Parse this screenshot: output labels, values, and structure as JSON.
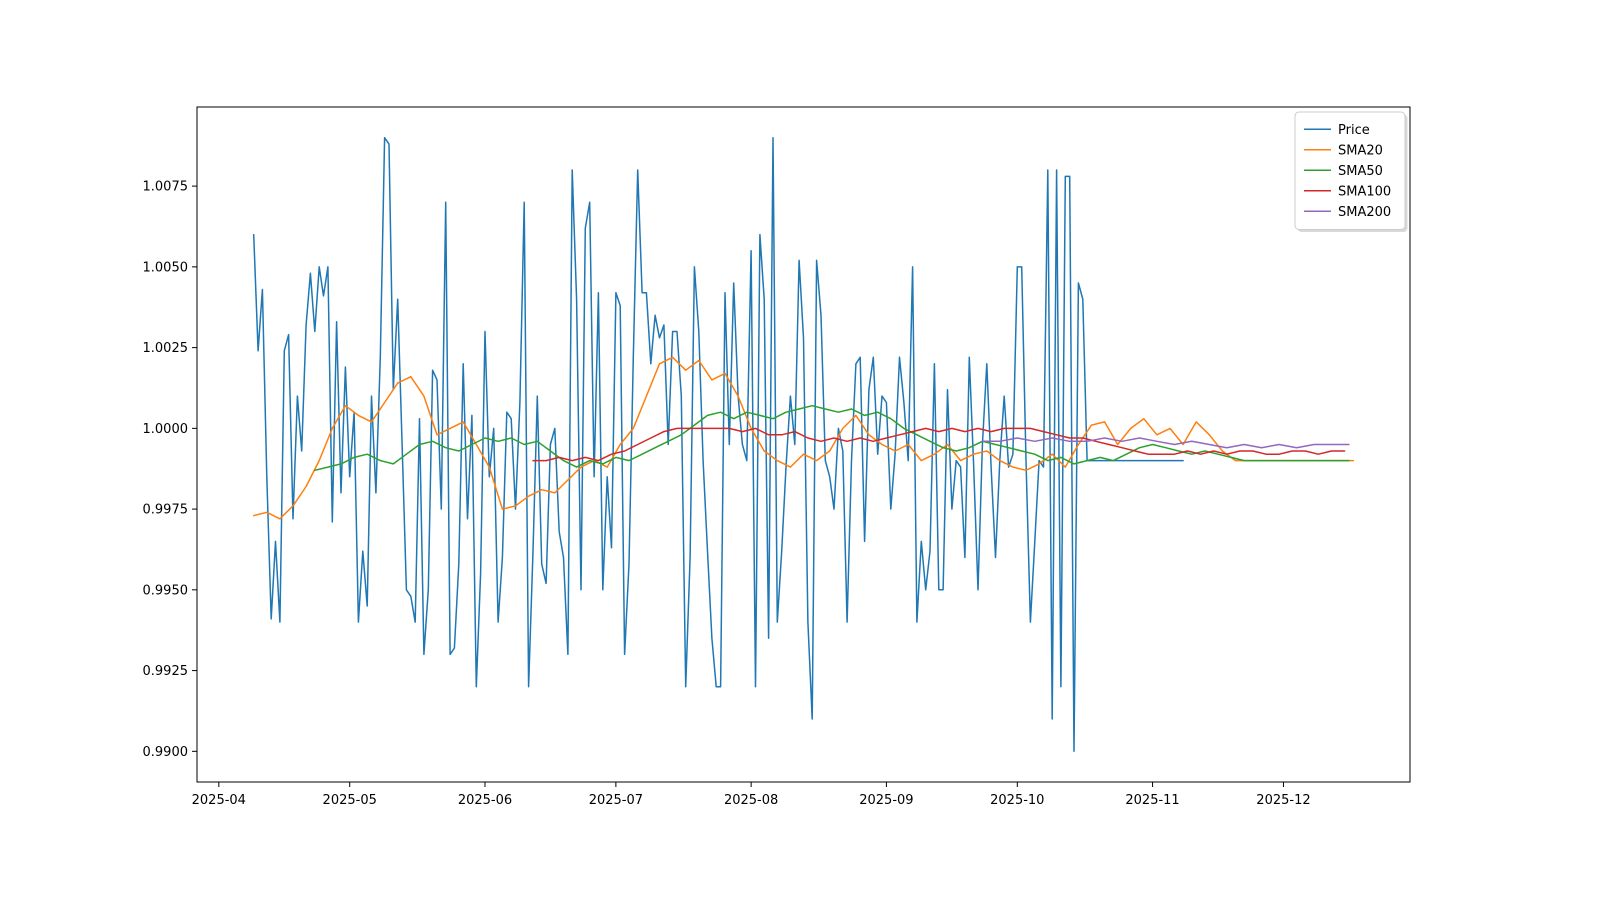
{
  "figure": {
    "background": "#ffffff",
    "axes_frame_color": "#000000",
    "tick_color": "#000000"
  },
  "chart_data": {
    "type": "line",
    "title": "",
    "xlabel": "",
    "ylabel": "",
    "grid": false,
    "legend_position": "upper right",
    "legend_frame_color": "#cccccc",
    "legend_background": "#ffffff",
    "x_axis_kind": "date",
    "day_0_date": "2025-04-01",
    "xlim_days": [
      -5,
      273
    ],
    "ylim": [
      0.98905,
      1.00995
    ],
    "x_ticks": [
      {
        "label": "2025-04",
        "day": 0
      },
      {
        "label": "2025-05",
        "day": 30
      },
      {
        "label": "2025-06",
        "day": 61
      },
      {
        "label": "2025-07",
        "day": 91
      },
      {
        "label": "2025-08",
        "day": 122
      },
      {
        "label": "2025-09",
        "day": 153
      },
      {
        "label": "2025-10",
        "day": 183
      },
      {
        "label": "2025-11",
        "day": 214
      },
      {
        "label": "2025-12",
        "day": 244
      }
    ],
    "y_ticks": [
      {
        "label": "0.9900",
        "value": 0.99
      },
      {
        "label": "0.9925",
        "value": 0.9925
      },
      {
        "label": "0.9950",
        "value": 0.995
      },
      {
        "label": "0.9975",
        "value": 0.9975
      },
      {
        "label": "1.0000",
        "value": 1.0
      },
      {
        "label": "1.0025",
        "value": 1.0025
      },
      {
        "label": "1.0050",
        "value": 1.005
      },
      {
        "label": "1.0075",
        "value": 1.0075
      }
    ],
    "series": [
      {
        "name": "Price",
        "color": "#1f77b4",
        "start_day": 8,
        "step_days": 1,
        "values": [
          1.006,
          1.0024,
          1.0043,
          0.9985,
          0.9941,
          0.9965,
          0.994,
          1.0024,
          1.0029,
          0.9972,
          1.001,
          0.9993,
          1.0032,
          1.0048,
          1.003,
          1.005,
          1.0041,
          1.005,
          0.9971,
          1.0033,
          0.998,
          1.0019,
          0.9985,
          1.0005,
          0.994,
          0.9962,
          0.9945,
          1.001,
          0.998,
          1.0022,
          1.009,
          1.0088,
          1.0012,
          1.004,
          0.9995,
          0.995,
          0.9948,
          0.994,
          1.0003,
          0.993,
          0.995,
          1.0018,
          1.0015,
          0.9975,
          1.007,
          0.993,
          0.9932,
          0.9958,
          1.002,
          0.9972,
          1.0004,
          0.992,
          0.9955,
          1.003,
          0.9985,
          1.0,
          0.994,
          0.996,
          1.0005,
          1.0003,
          0.9975,
          1.0008,
          1.007,
          0.992,
          0.9962,
          1.001,
          0.9958,
          0.9952,
          0.9995,
          1.0,
          0.9968,
          0.996,
          0.993,
          1.008,
          1.004,
          0.995,
          1.0062,
          1.007,
          0.9985,
          1.0042,
          0.995,
          0.9985,
          0.9963,
          1.0042,
          1.0038,
          0.993,
          0.9958,
          1.0022,
          1.008,
          1.0042,
          1.0042,
          1.002,
          1.0035,
          1.0028,
          1.0032,
          0.9995,
          1.003,
          1.003,
          1.001,
          0.992,
          0.996,
          1.005,
          1.003,
          0.999,
          0.9962,
          0.9935,
          0.992,
          0.992,
          1.0042,
          0.9995,
          1.0045,
          1.001,
          0.9995,
          0.999,
          1.0055,
          0.992,
          1.006,
          1.004,
          0.9935,
          1.009,
          0.994,
          0.9962,
          0.9988,
          1.001,
          0.9995,
          1.0052,
          1.0028,
          0.994,
          0.991,
          1.0052,
          1.0035,
          0.999,
          0.9985,
          0.9975,
          1.0,
          0.9993,
          0.994,
          0.999,
          1.002,
          1.0022,
          0.9965,
          1.0012,
          1.0022,
          0.9992,
          1.001,
          1.0008,
          0.9975,
          0.9992,
          1.0022,
          1.0008,
          0.999,
          1.005,
          0.994,
          0.9965,
          0.995,
          0.9962,
          1.002,
          0.995,
          0.995,
          1.0012,
          0.9975,
          0.999,
          0.9988,
          0.996,
          1.0022,
          0.9988,
          0.995,
          0.9995,
          1.002,
          0.9988,
          0.996,
          0.999,
          1.001,
          0.9988,
          0.9992,
          1.005,
          1.005,
          0.999,
          0.994,
          0.9965,
          0.999,
          0.9988,
          1.008,
          0.991,
          1.008,
          0.992,
          1.0078,
          1.0078,
          0.99,
          1.0045,
          1.004,
          0.999,
          0.999,
          0.999,
          0.999,
          0.999,
          0.999,
          0.999,
          0.999,
          0.999,
          0.999,
          0.999,
          0.999,
          0.999,
          0.999,
          0.999,
          0.999,
          0.999,
          0.999,
          0.999,
          0.999,
          0.999,
          0.999,
          0.999
        ]
      },
      {
        "name": "SMA20",
        "color": "#ff7f0e",
        "start_day": 8,
        "step_days": 3,
        "values": [
          0.9973,
          0.9974,
          0.9972,
          0.9976,
          0.9982,
          0.999,
          1.0,
          1.0007,
          1.0004,
          1.0002,
          1.0008,
          1.0014,
          1.0016,
          1.001,
          0.9998,
          1.0,
          1.0002,
          0.9995,
          0.9988,
          0.9975,
          0.9976,
          0.9979,
          0.9981,
          0.998,
          0.9984,
          0.9988,
          0.999,
          0.9988,
          0.9995,
          1.0,
          1.001,
          1.002,
          1.0022,
          1.0018,
          1.0021,
          1.0015,
          1.0017,
          1.001,
          1.0,
          0.9993,
          0.999,
          0.9988,
          0.9992,
          0.999,
          0.9993,
          1.0,
          1.0004,
          0.9998,
          0.9995,
          0.9993,
          0.9995,
          0.999,
          0.9992,
          0.9995,
          0.999,
          0.9992,
          0.9993,
          0.999,
          0.9988,
          0.9987,
          0.9989,
          0.9992,
          0.9988,
          0.9995,
          1.0001,
          1.0002,
          0.9995,
          1.0,
          1.0003,
          0.9998,
          1.0,
          0.9995,
          1.0002,
          0.9998,
          0.9993,
          0.999,
          0.999,
          0.999,
          0.999,
          0.999,
          0.999,
          0.999,
          0.999,
          0.999,
          0.999
        ]
      },
      {
        "name": "SMA50",
        "color": "#2ca02c",
        "start_day": 22,
        "step_days": 3,
        "values": [
          0.9987,
          0.9988,
          0.9989,
          0.9991,
          0.9992,
          0.999,
          0.9989,
          0.9992,
          0.9995,
          0.9996,
          0.9994,
          0.9993,
          0.9995,
          0.9997,
          0.9996,
          0.9997,
          0.9995,
          0.9996,
          0.9993,
          0.999,
          0.9988,
          0.999,
          0.9989,
          0.9991,
          0.999,
          0.9992,
          0.9994,
          0.9996,
          0.9998,
          1.0001,
          1.0004,
          1.0005,
          1.0003,
          1.0005,
          1.0004,
          1.0003,
          1.0005,
          1.0006,
          1.0007,
          1.0006,
          1.0005,
          1.0006,
          1.0004,
          1.0005,
          1.0003,
          1.0,
          0.9998,
          0.9996,
          0.9994,
          0.9993,
          0.9994,
          0.9996,
          0.9995,
          0.9994,
          0.9993,
          0.9992,
          0.999,
          0.9991,
          0.9989,
          0.999,
          0.9991,
          0.999,
          0.9992,
          0.9994,
          0.9995,
          0.9994,
          0.9993,
          0.9992,
          0.9993,
          0.9992,
          0.9991,
          0.999,
          0.999,
          0.999,
          0.999,
          0.999,
          0.999,
          0.999,
          0.999,
          0.999
        ]
      },
      {
        "name": "SMA100",
        "color": "#d62728",
        "start_day": 72,
        "step_days": 3,
        "values": [
          0.999,
          0.999,
          0.9991,
          0.999,
          0.9991,
          0.999,
          0.9992,
          0.9993,
          0.9995,
          0.9997,
          0.9999,
          1.0,
          1.0,
          1.0,
          1.0,
          1.0,
          0.9999,
          1.0,
          0.9998,
          0.9998,
          0.9999,
          0.9997,
          0.9996,
          0.9997,
          0.9996,
          0.9997,
          0.9996,
          0.9997,
          0.9998,
          0.9999,
          1.0,
          0.9999,
          1.0,
          0.9999,
          1.0,
          0.9999,
          1.0,
          1.0,
          1.0,
          0.9999,
          0.9998,
          0.9997,
          0.9997,
          0.9996,
          0.9995,
          0.9994,
          0.9993,
          0.9992,
          0.9992,
          0.9992,
          0.9993,
          0.9992,
          0.9993,
          0.9992,
          0.9993,
          0.9993,
          0.9992,
          0.9992,
          0.9993,
          0.9993,
          0.9992,
          0.9993,
          0.9993
        ]
      },
      {
        "name": "SMA200",
        "color": "#9467bd",
        "start_day": 175,
        "step_days": 4,
        "values": [
          0.9996,
          0.9996,
          0.9997,
          0.9996,
          0.9997,
          0.9996,
          0.9996,
          0.9997,
          0.9996,
          0.9997,
          0.9996,
          0.9995,
          0.9996,
          0.9995,
          0.9994,
          0.9995,
          0.9994,
          0.9995,
          0.9994,
          0.9995,
          0.9995,
          0.9995
        ]
      }
    ]
  }
}
